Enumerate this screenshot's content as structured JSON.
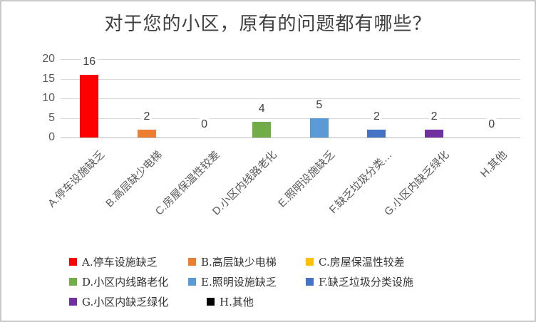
{
  "window": {
    "background": "#ffffff",
    "border_color": "#c9c9c9"
  },
  "chart_data": {
    "type": "bar",
    "title": "对于您的小区，原有的问题都有哪些？",
    "categories": [
      "A.停车设施缺乏",
      "B.高层缺少电梯",
      "C.房屋保温性较差",
      "D.小区内线路老化",
      "E.照明设施缺乏",
      "F.缺乏垃圾分类…",
      "G.小区内缺乏绿化",
      "H.其他"
    ],
    "values": [
      16,
      2,
      0,
      4,
      5,
      2,
      2,
      0
    ],
    "bar_colors": [
      "#ff0000",
      "#ed7d31",
      "#ffc000",
      "#70ad47",
      "#5b9bd5",
      "#4472c4",
      "#7030a0",
      "#000000"
    ],
    "xlabel": "",
    "ylabel": "",
    "ylim": [
      0,
      20
    ],
    "yticks": [
      0,
      5,
      10,
      15,
      20
    ],
    "grid": true,
    "gridline_color": "#d9d9d9",
    "data_labels_shown": true,
    "legend_position": "bottom",
    "legend_entries": [
      {
        "label": "A.停车设施缺乏",
        "color": "#ff0000"
      },
      {
        "label": "B.高层缺少电梯",
        "color": "#ed7d31"
      },
      {
        "label": "C.房屋保温性较差",
        "color": "#ffc000"
      },
      {
        "label": "D.小区内线路老化",
        "color": "#70ad47"
      },
      {
        "label": "E.照明设施缺乏",
        "color": "#5b9bd5"
      },
      {
        "label": "F.缺乏垃圾分类设施",
        "color": "#4472c4"
      },
      {
        "label": "G.小区内缺乏绿化",
        "color": "#7030a0"
      },
      {
        "label": "H.其他",
        "color": "#000000"
      }
    ]
  }
}
